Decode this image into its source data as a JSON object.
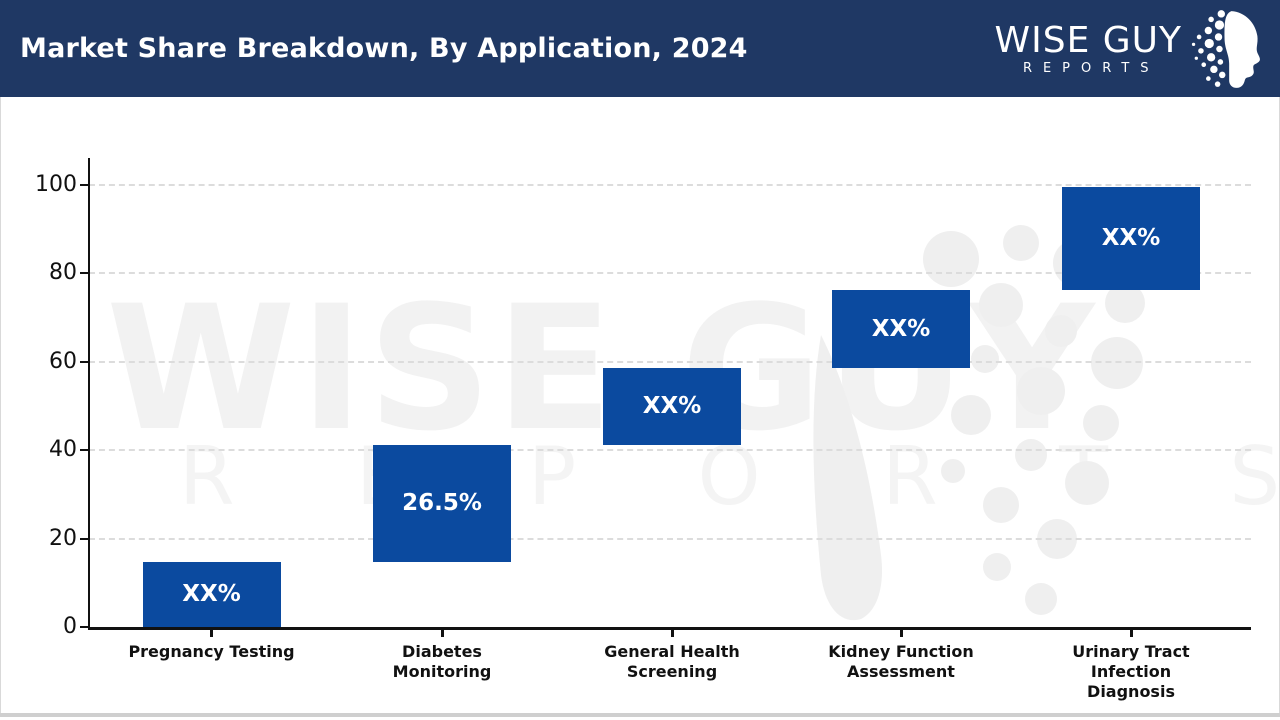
{
  "header": {
    "title": "Market Share Breakdown, By Application, 2024",
    "logo": {
      "line1": "WISE GUY",
      "line2": "REPORTS"
    }
  },
  "watermark": {
    "line1": "WISE GUY",
    "line2": "R E P O R T S"
  },
  "colors": {
    "header_bg": "#1f3864",
    "bar": "#0b4a9f",
    "bar_label_text": "#ffffff",
    "axis_text": "#111111",
    "gridline": "#dcdcdc",
    "watermark": "#f2f2f2"
  },
  "chart_data": {
    "type": "bar",
    "variant": "waterfall",
    "title": "Market Share Breakdown, By Application, 2024",
    "xlabel": "",
    "ylabel": "",
    "ylim": [
      0,
      105
    ],
    "y_ticks": [
      0,
      20,
      40,
      60,
      80,
      100
    ],
    "grid": {
      "horizontal": true,
      "style": "dashed"
    },
    "legend": "none",
    "bar_color": "#0b4a9f",
    "categories": [
      "Pregnancy Testing",
      "Diabetes Monitoring",
      "General Health Screening",
      "Kidney Function Assessment",
      "Urinary Tract Infection Diagnosis"
    ],
    "bars": [
      {
        "category": "Pregnancy Testing",
        "lines": "Pregnancy Testing",
        "start": 0,
        "end": 14.7,
        "label": "XX%"
      },
      {
        "category": "Diabetes Monitoring",
        "lines": "Diabetes\nMonitoring",
        "start": 14.7,
        "end": 41.2,
        "label": "26.5%",
        "value": 26.5
      },
      {
        "category": "General Health Screening",
        "lines": "General Health\nScreening",
        "start": 41.2,
        "end": 58.6,
        "label": "XX%"
      },
      {
        "category": "Kidney Function Assessment",
        "lines": "Kidney Function\nAssessment",
        "start": 58.6,
        "end": 76.1,
        "label": "XX%"
      },
      {
        "category": "Urinary Tract Infection Diagnosis",
        "lines": "Urinary Tract\nInfection\nDiagnosis",
        "start": 76.1,
        "end": 99.5,
        "label": "XX%"
      }
    ]
  }
}
